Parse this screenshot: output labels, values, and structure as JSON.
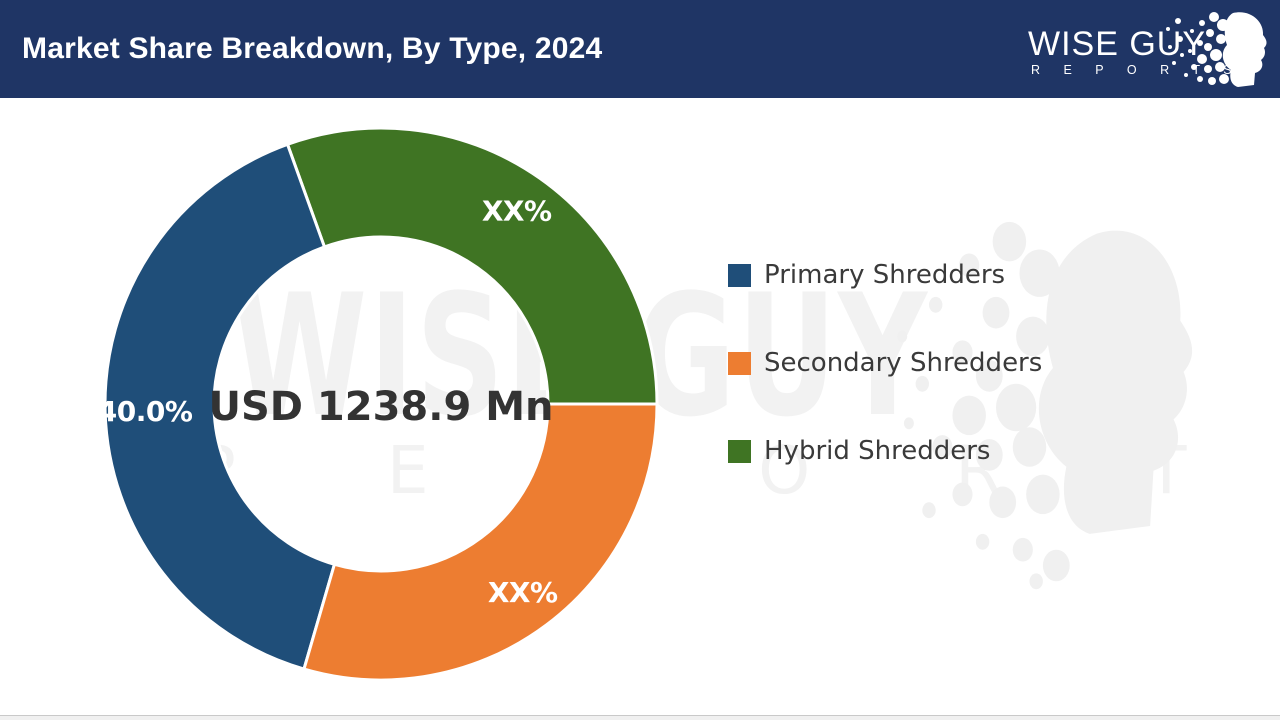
{
  "header": {
    "title": "Market Share Breakdown, By Type, 2024"
  },
  "logo": {
    "wordmark": "WISE GUY",
    "sub": "R E P O R T S"
  },
  "watermark": {
    "wordmark": "WISE GUY",
    "sub": "R E P O R T S"
  },
  "colors": {
    "header_bg": "#1F3565",
    "primary_blue": "#1F4E79",
    "secondary_orange": "#ED7D31",
    "hybrid_green": "#3F7423",
    "center_text": "#333333",
    "legend_text": "#3A3A3A"
  },
  "chart_data": {
    "type": "pie",
    "subtype": "donut",
    "title": "Market Share Breakdown, By Type, 2024",
    "center_label": "USD 1238.9 Mn",
    "start_angle_deg": 0,
    "direction": "counterclockwise",
    "segments": [
      {
        "name": "Hybrid Shredders",
        "value_pct": 30.5,
        "display_label": "XX%",
        "color": "#3F7423"
      },
      {
        "name": "Primary Shredders",
        "value_pct": 40.0,
        "display_label": "40.0%",
        "color": "#1F4E79"
      },
      {
        "name": "Secondary Shredders",
        "value_pct": 29.5,
        "display_label": "XX%",
        "color": "#ED7D31"
      }
    ],
    "legend": [
      {
        "label": "Primary Shredders",
        "color": "#1F4E79"
      },
      {
        "label": "Secondary Shredders",
        "color": "#ED7D31"
      },
      {
        "label": "Hybrid Shredders",
        "color": "#3F7423"
      }
    ],
    "legend_position": "right"
  }
}
